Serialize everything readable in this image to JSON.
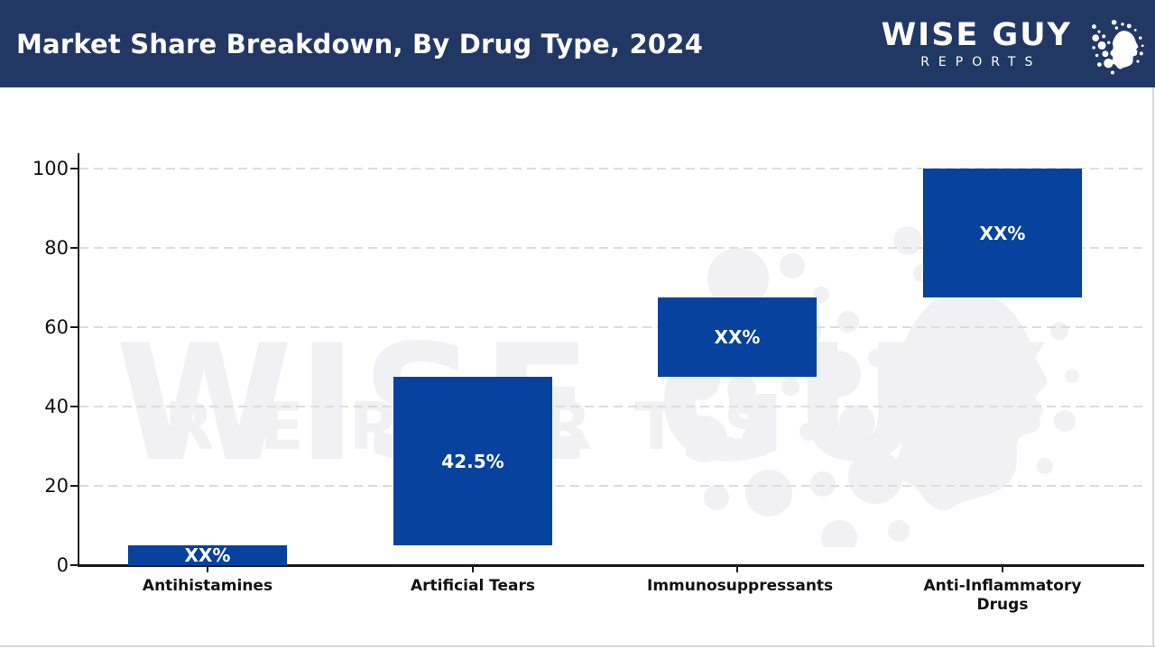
{
  "header": {
    "title": "Market Share Breakdown, By Drug Type, 2024",
    "logo": {
      "line1": "WISE GUY",
      "line2": "REPORTS"
    }
  },
  "watermark": {
    "line1": "WISE GUY",
    "line2": "REPORTS"
  },
  "chart_data": {
    "type": "bar",
    "subtype": "waterfall-floating-bars",
    "title": "Market Share Breakdown, By Drug Type, 2024",
    "categories": [
      "Antihistamines",
      "Artificial Tears",
      "Immunosuppressants",
      "Anti-Inflammatory Drugs"
    ],
    "series": [
      {
        "name": "Market Share",
        "segments": [
          {
            "category": "Antihistamines",
            "start": 0,
            "end": 5,
            "label": "XX%"
          },
          {
            "category": "Artificial Tears",
            "start": 5,
            "end": 47.5,
            "label": "42.5%"
          },
          {
            "category": "Immunosuppressants",
            "start": 47.5,
            "end": 67.5,
            "label": "XX%"
          },
          {
            "category": "Anti-Inflammatory Drugs",
            "start": 67.5,
            "end": 100,
            "label": "XX%"
          }
        ]
      }
    ],
    "xlabel": "",
    "ylabel": "",
    "ylim": [
      0,
      100
    ],
    "yticks": [
      0,
      20,
      40,
      60,
      80,
      100
    ],
    "grid": "horizontal-dashed",
    "legend": "none",
    "bar_color": "#06429e",
    "bar_label_color": "#ffffff"
  },
  "colors": {
    "header_bg": "#223864",
    "header_text": "#ffffff",
    "bar": "#06429e",
    "bar_label": "#ffffff",
    "axis": "#1a1a1a",
    "tick_text": "#111111",
    "gridline": "#dcdcdc",
    "watermark": "#f1f1f3",
    "hairline": "#d9d9d9"
  }
}
